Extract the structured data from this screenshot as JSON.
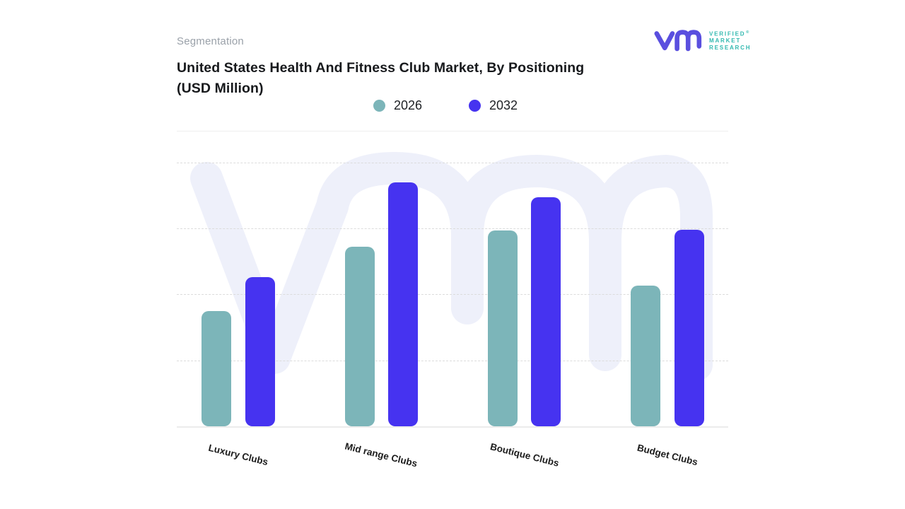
{
  "header": {
    "eyebrow": "Segmentation",
    "title_line1": "United States Health And Fitness Club Market, By Positioning",
    "title_line2": "(USD Million)"
  },
  "logo": {
    "wordmark_lines": [
      "VERIFIED",
      "MARKET",
      "RESEARCH"
    ],
    "registered_mark": "®",
    "mark_color": "#5a4fdf",
    "wordmark_color": "#33b9b0"
  },
  "legend": [
    {
      "label": "2026",
      "color": "#7cb5b9"
    },
    {
      "label": "2032",
      "color": "#4633f0"
    }
  ],
  "colors": {
    "series_2026": "#7cb5b9",
    "series_2032": "#4633f0",
    "watermark": "#eef0fa",
    "gridline": "#dcdcdc",
    "axis_line": "#ececec",
    "eyebrow_text": "#9aa1a9",
    "title_text": "#17191c",
    "label_text": "#1c1c1c"
  },
  "chart_data": {
    "type": "bar",
    "title": "United States Health And Fitness Club Market, By Positioning (USD Million)",
    "categories": [
      "Luxury Clubs",
      "Mid range Clubs",
      "Boutique Clubs",
      "Budget Clubs"
    ],
    "series": [
      {
        "name": "2026",
        "color": "#7cb5b9",
        "values": [
          1.75,
          2.72,
          2.97,
          2.13
        ]
      },
      {
        "name": "2032",
        "color": "#4633f0",
        "values": [
          2.26,
          3.7,
          3.47,
          2.98
        ]
      }
    ],
    "xlabel": "",
    "ylabel": "",
    "ylim": [
      0,
      4.5
    ],
    "gridlines": [
      1,
      2,
      3,
      4
    ],
    "grid_style": "dashed",
    "y_tick_labels_visible": false,
    "legend_position": "top-center",
    "units_note": "USD Million; axis unlabeled, values estimated in gridline units"
  }
}
